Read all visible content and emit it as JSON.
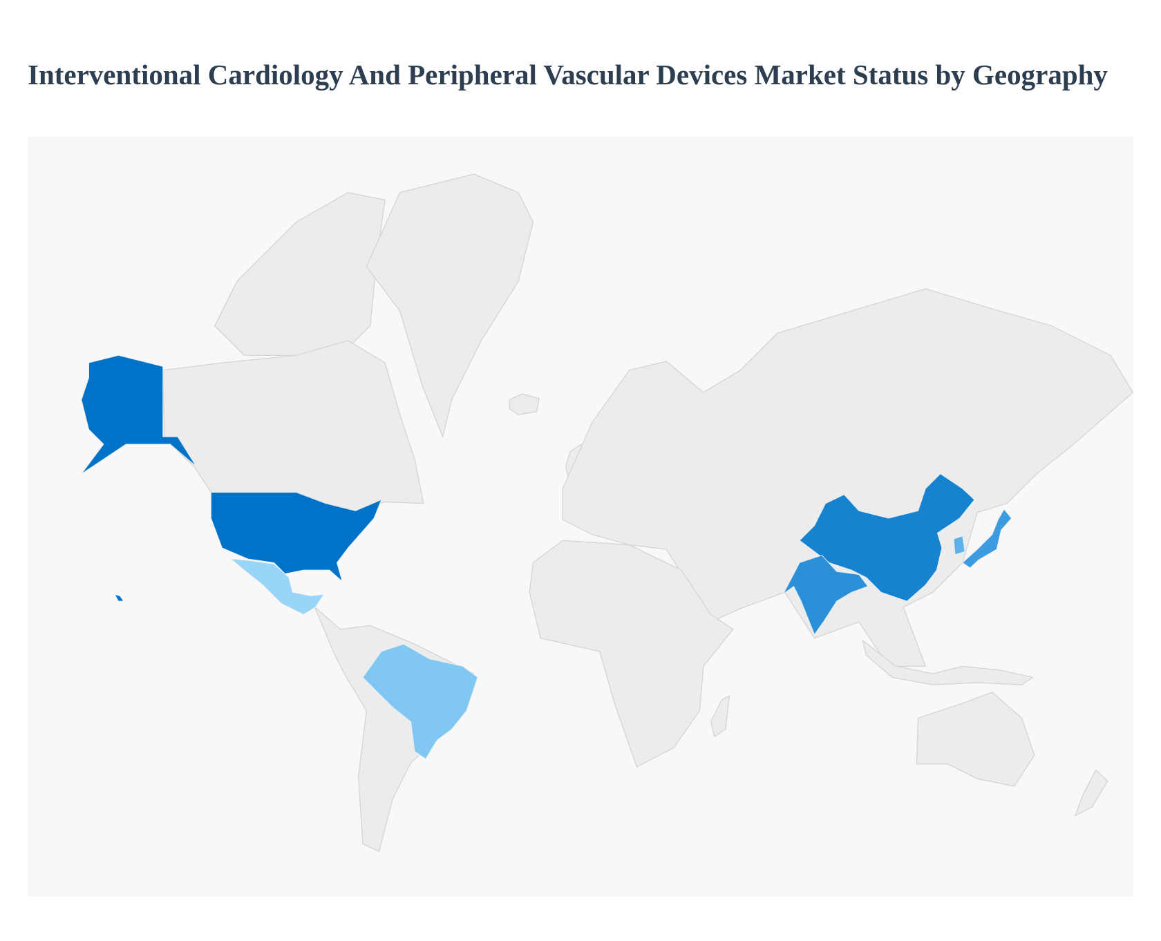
{
  "title": "Interventional Cardiology And Peripheral Vascular Devices Market Status by Geography",
  "map": {
    "background": "#f8f8f8",
    "land_color": "#ececec",
    "border_color": "#d4d4d4",
    "highlight_colors": {
      "usa": "#0073c8",
      "alaska": "#0073c8",
      "hawaii": "#0073c8",
      "china": "#1783d0",
      "india": "#2b90d8",
      "japan": "#3d9be0",
      "south-korea": "#5db0e8",
      "brazil": "#80c8f2",
      "mexico": "#98d5f8"
    }
  }
}
